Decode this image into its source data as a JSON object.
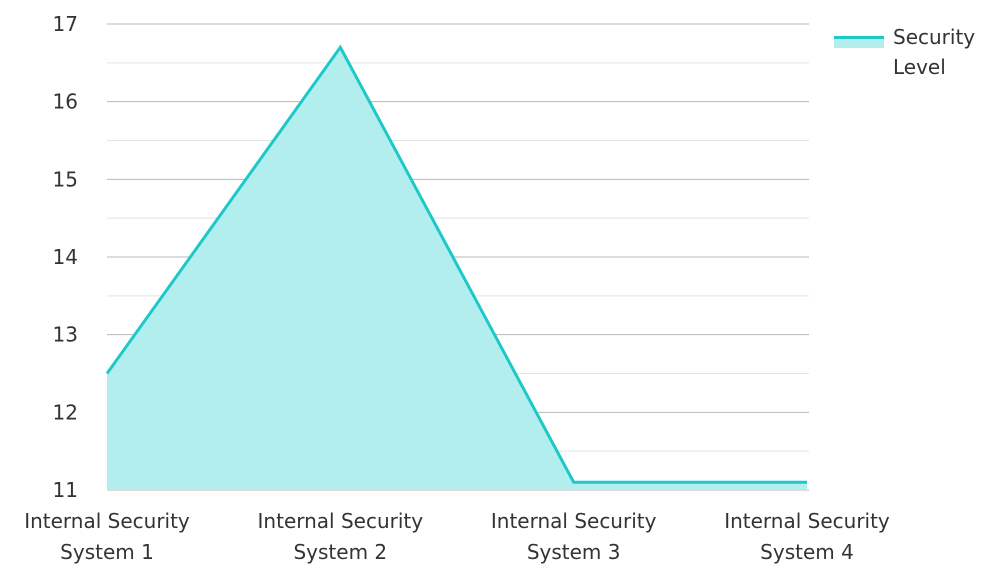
{
  "chart_data": {
    "type": "area",
    "categories": [
      [
        "Internal Security",
        "System 1"
      ],
      [
        "Internal Security",
        "System 2"
      ],
      [
        "Internal Security",
        "System 3"
      ],
      [
        "Internal Security",
        "System 4"
      ]
    ],
    "series": [
      {
        "name": "Security Level",
        "values": [
          12.5,
          16.7,
          11.1,
          11.1
        ]
      }
    ],
    "ylim": [
      11,
      17
    ],
    "yticks": [
      11,
      12,
      13,
      14,
      15,
      16,
      17
    ],
    "grid": true,
    "legend_position": "top-right",
    "colors": {
      "line": "#1ec8c8",
      "fill": "#b2eeee",
      "grid_major": "#b8b8b8",
      "grid_minor": "#e3e3e3",
      "text": "#333333"
    },
    "legend": {
      "label_lines": [
        "Security",
        "Level"
      ]
    }
  }
}
